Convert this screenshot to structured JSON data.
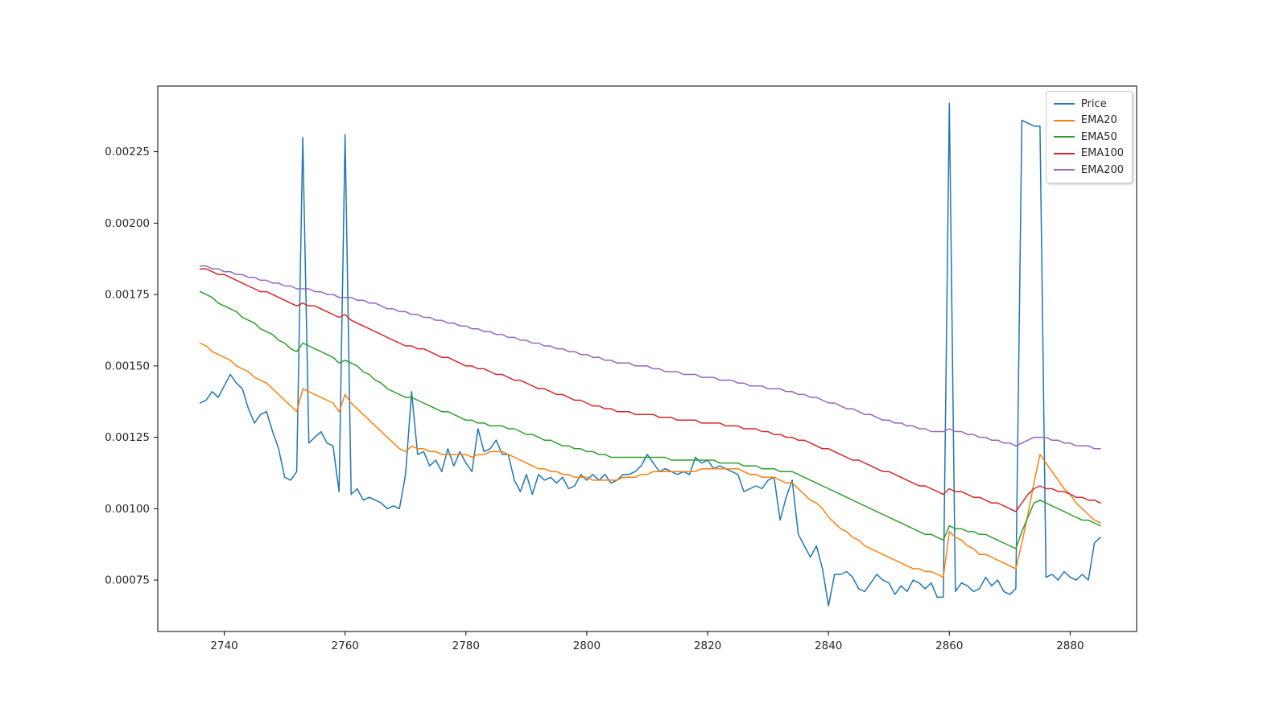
{
  "figure": {
    "background": "#ffffff",
    "axes_edge_color": "#000000",
    "tick_color": "#000000"
  },
  "legend": {
    "position": "upper right",
    "entries": [
      {
        "label": "Price",
        "color": "#1f77b4"
      },
      {
        "label": "EMA20",
        "color": "#ff7f0e"
      },
      {
        "label": "EMA50",
        "color": "#2ca02c"
      },
      {
        "label": "EMA100",
        "color": "#d62728"
      },
      {
        "label": "EMA200",
        "color": "#9467bd"
      }
    ]
  },
  "chart_data": {
    "type": "line",
    "title": "",
    "xlabel": "",
    "ylabel": "",
    "grid": false,
    "legend_position": "upper right",
    "xlim": [
      2729,
      2891
    ],
    "ylim": [
      0.00057,
      0.00248
    ],
    "xticks": [
      2740,
      2760,
      2780,
      2800,
      2820,
      2840,
      2860,
      2880
    ],
    "xtick_labels": [
      "2740",
      "2760",
      "2780",
      "2800",
      "2820",
      "2840",
      "2860",
      "2880"
    ],
    "yticks": [
      0.00075,
      0.001,
      0.00125,
      0.0015,
      0.00175,
      0.002,
      0.00225
    ],
    "ytick_labels": [
      "0.00075",
      "0.00100",
      "0.00125",
      "0.00150",
      "0.00175",
      "0.00200",
      "0.00225"
    ],
    "x": [
      2736,
      2737,
      2738,
      2739,
      2740,
      2741,
      2742,
      2743,
      2744,
      2745,
      2746,
      2747,
      2748,
      2749,
      2750,
      2751,
      2752,
      2753,
      2754,
      2755,
      2756,
      2757,
      2758,
      2759,
      2760,
      2761,
      2762,
      2763,
      2764,
      2765,
      2766,
      2767,
      2768,
      2769,
      2770,
      2771,
      2772,
      2773,
      2774,
      2775,
      2776,
      2777,
      2778,
      2779,
      2780,
      2781,
      2782,
      2783,
      2784,
      2785,
      2786,
      2787,
      2788,
      2789,
      2790,
      2791,
      2792,
      2793,
      2794,
      2795,
      2796,
      2797,
      2798,
      2799,
      2800,
      2801,
      2802,
      2803,
      2804,
      2805,
      2806,
      2807,
      2808,
      2809,
      2810,
      2811,
      2812,
      2813,
      2814,
      2815,
      2816,
      2817,
      2818,
      2819,
      2820,
      2821,
      2822,
      2823,
      2824,
      2825,
      2826,
      2827,
      2828,
      2829,
      2830,
      2831,
      2832,
      2833,
      2834,
      2835,
      2836,
      2837,
      2838,
      2839,
      2840,
      2841,
      2842,
      2843,
      2844,
      2845,
      2846,
      2847,
      2848,
      2849,
      2850,
      2851,
      2852,
      2853,
      2854,
      2855,
      2856,
      2857,
      2858,
      2859,
      2860,
      2861,
      2862,
      2863,
      2864,
      2865,
      2866,
      2867,
      2868,
      2869,
      2870,
      2871,
      2872,
      2873,
      2874,
      2875,
      2876,
      2877,
      2878,
      2879,
      2880,
      2881,
      2882,
      2883,
      2884,
      2885
    ],
    "series": [
      {
        "name": "Price",
        "color": "#1f77b4",
        "values": [
          0.00137,
          0.00138,
          0.00141,
          0.00139,
          0.00143,
          0.00147,
          0.00144,
          0.00142,
          0.00135,
          0.0013,
          0.00133,
          0.00134,
          0.00127,
          0.00121,
          0.00111,
          0.0011,
          0.00113,
          0.0023,
          0.00123,
          0.00125,
          0.00127,
          0.00123,
          0.00122,
          0.00106,
          0.00231,
          0.00105,
          0.00107,
          0.00103,
          0.00104,
          0.00103,
          0.00102,
          0.001,
          0.00101,
          0.001,
          0.00112,
          0.00141,
          0.00119,
          0.0012,
          0.00115,
          0.00117,
          0.00113,
          0.00121,
          0.00115,
          0.0012,
          0.00116,
          0.00113,
          0.00128,
          0.0012,
          0.00121,
          0.00124,
          0.00119,
          0.00119,
          0.0011,
          0.00106,
          0.00112,
          0.00105,
          0.00112,
          0.0011,
          0.00111,
          0.00109,
          0.00111,
          0.00107,
          0.00108,
          0.00112,
          0.0011,
          0.00112,
          0.0011,
          0.00112,
          0.00109,
          0.0011,
          0.00112,
          0.00112,
          0.00113,
          0.00115,
          0.00119,
          0.00116,
          0.00113,
          0.00114,
          0.00113,
          0.00112,
          0.00113,
          0.00112,
          0.00118,
          0.00116,
          0.00117,
          0.00114,
          0.00115,
          0.00114,
          0.00113,
          0.00112,
          0.00106,
          0.00107,
          0.00108,
          0.00107,
          0.0011,
          0.00111,
          0.00096,
          0.00104,
          0.0011,
          0.00091,
          0.00087,
          0.00083,
          0.00087,
          0.00079,
          0.00066,
          0.00077,
          0.00077,
          0.00078,
          0.00076,
          0.00072,
          0.00071,
          0.00074,
          0.00077,
          0.00075,
          0.00074,
          0.0007,
          0.00073,
          0.00071,
          0.00075,
          0.00074,
          0.00072,
          0.00074,
          0.00069,
          0.00069,
          0.00242,
          0.00071,
          0.00074,
          0.00073,
          0.00071,
          0.00072,
          0.00076,
          0.00073,
          0.00075,
          0.00071,
          0.0007,
          0.00072,
          0.00236,
          0.00235,
          0.00234,
          0.00234,
          0.00076,
          0.00077,
          0.00075,
          0.00078,
          0.00076,
          0.00075,
          0.00077,
          0.00075,
          0.00088,
          0.0009
        ]
      },
      {
        "name": "EMA20",
        "color": "#ff7f0e",
        "values": [
          0.00158,
          0.00157,
          0.00155,
          0.00154,
          0.00153,
          0.00152,
          0.0015,
          0.00149,
          0.00148,
          0.00146,
          0.00145,
          0.00144,
          0.00142,
          0.0014,
          0.00138,
          0.00136,
          0.00134,
          0.00142,
          0.00141,
          0.0014,
          0.00139,
          0.00138,
          0.00137,
          0.00134,
          0.0014,
          0.00137,
          0.00135,
          0.00133,
          0.00131,
          0.00129,
          0.00127,
          0.00125,
          0.00123,
          0.00121,
          0.0012,
          0.00122,
          0.00121,
          0.00121,
          0.0012,
          0.0012,
          0.00119,
          0.00119,
          0.00119,
          0.00119,
          0.00119,
          0.00118,
          0.00119,
          0.00119,
          0.0012,
          0.0012,
          0.0012,
          0.00119,
          0.00118,
          0.00117,
          0.00116,
          0.00115,
          0.00114,
          0.00114,
          0.00113,
          0.00113,
          0.00112,
          0.00112,
          0.00111,
          0.00111,
          0.00111,
          0.0011,
          0.0011,
          0.0011,
          0.0011,
          0.0011,
          0.00111,
          0.00111,
          0.00111,
          0.00112,
          0.00112,
          0.00113,
          0.00113,
          0.00113,
          0.00113,
          0.00113,
          0.00113,
          0.00113,
          0.00113,
          0.00114,
          0.00114,
          0.00114,
          0.00114,
          0.00114,
          0.00114,
          0.00114,
          0.00113,
          0.00112,
          0.00112,
          0.00111,
          0.00111,
          0.00111,
          0.0011,
          0.00109,
          0.00109,
          0.00107,
          0.00105,
          0.00103,
          0.00102,
          0.001,
          0.00097,
          0.00095,
          0.00093,
          0.00092,
          0.0009,
          0.00089,
          0.00087,
          0.00086,
          0.00085,
          0.00084,
          0.00083,
          0.00082,
          0.00081,
          0.0008,
          0.00079,
          0.00079,
          0.00078,
          0.00078,
          0.00077,
          0.00076,
          0.00092,
          0.0009,
          0.00089,
          0.00087,
          0.00086,
          0.00084,
          0.00084,
          0.00083,
          0.00082,
          0.00081,
          0.0008,
          0.00079,
          0.00088,
          0.00098,
          0.00109,
          0.00119,
          0.00116,
          0.00113,
          0.0011,
          0.00107,
          0.00105,
          0.00102,
          0.001,
          0.00098,
          0.00096,
          0.00095
        ]
      },
      {
        "name": "EMA50",
        "color": "#2ca02c",
        "values": [
          0.00176,
          0.00175,
          0.00174,
          0.00172,
          0.00171,
          0.0017,
          0.00169,
          0.00167,
          0.00166,
          0.00165,
          0.00163,
          0.00162,
          0.00161,
          0.00159,
          0.00158,
          0.00156,
          0.00155,
          0.00158,
          0.00157,
          0.00156,
          0.00155,
          0.00154,
          0.00153,
          0.00151,
          0.00152,
          0.00151,
          0.0015,
          0.00148,
          0.00147,
          0.00145,
          0.00144,
          0.00142,
          0.00141,
          0.0014,
          0.00139,
          0.00139,
          0.00138,
          0.00137,
          0.00136,
          0.00135,
          0.00134,
          0.00134,
          0.00133,
          0.00132,
          0.00131,
          0.00131,
          0.0013,
          0.0013,
          0.00129,
          0.00129,
          0.00129,
          0.00128,
          0.00128,
          0.00127,
          0.00126,
          0.00126,
          0.00125,
          0.00124,
          0.00124,
          0.00123,
          0.00122,
          0.00122,
          0.00121,
          0.00121,
          0.0012,
          0.0012,
          0.00119,
          0.00119,
          0.00118,
          0.00118,
          0.00118,
          0.00118,
          0.00118,
          0.00118,
          0.00118,
          0.00118,
          0.00118,
          0.00118,
          0.00117,
          0.00117,
          0.00117,
          0.00117,
          0.00117,
          0.00117,
          0.00117,
          0.00117,
          0.00116,
          0.00116,
          0.00116,
          0.00116,
          0.00115,
          0.00115,
          0.00115,
          0.00114,
          0.00114,
          0.00114,
          0.00113,
          0.00113,
          0.00113,
          0.00112,
          0.00111,
          0.0011,
          0.00109,
          0.00108,
          0.00107,
          0.00106,
          0.00105,
          0.00104,
          0.00103,
          0.00102,
          0.00101,
          0.001,
          0.00099,
          0.00098,
          0.00097,
          0.00096,
          0.00095,
          0.00094,
          0.00093,
          0.00092,
          0.00091,
          0.00091,
          0.0009,
          0.00089,
          0.00094,
          0.00093,
          0.00093,
          0.00092,
          0.00092,
          0.00091,
          0.00091,
          0.0009,
          0.00089,
          0.00088,
          0.00087,
          0.00086,
          0.00092,
          0.00097,
          0.00102,
          0.00103,
          0.00102,
          0.00101,
          0.001,
          0.00099,
          0.00098,
          0.00097,
          0.00096,
          0.00096,
          0.00095,
          0.00094
        ]
      },
      {
        "name": "EMA100",
        "color": "#d62728",
        "values": [
          0.00184,
          0.00184,
          0.00183,
          0.00182,
          0.00182,
          0.00181,
          0.0018,
          0.00179,
          0.00178,
          0.00177,
          0.00176,
          0.00176,
          0.00175,
          0.00174,
          0.00173,
          0.00172,
          0.00171,
          0.00172,
          0.00171,
          0.00171,
          0.0017,
          0.00169,
          0.00168,
          0.00167,
          0.00168,
          0.00166,
          0.00165,
          0.00164,
          0.00163,
          0.00162,
          0.00161,
          0.0016,
          0.00159,
          0.00158,
          0.00157,
          0.00157,
          0.00156,
          0.00156,
          0.00155,
          0.00154,
          0.00153,
          0.00153,
          0.00152,
          0.00151,
          0.0015,
          0.0015,
          0.00149,
          0.00149,
          0.00148,
          0.00147,
          0.00147,
          0.00146,
          0.00145,
          0.00145,
          0.00144,
          0.00143,
          0.00142,
          0.00142,
          0.00141,
          0.0014,
          0.0014,
          0.00139,
          0.00138,
          0.00138,
          0.00137,
          0.00136,
          0.00136,
          0.00135,
          0.00135,
          0.00134,
          0.00134,
          0.00134,
          0.00133,
          0.00133,
          0.00133,
          0.00133,
          0.00132,
          0.00132,
          0.00132,
          0.00131,
          0.00131,
          0.00131,
          0.00131,
          0.0013,
          0.0013,
          0.0013,
          0.0013,
          0.00129,
          0.00129,
          0.00129,
          0.00128,
          0.00128,
          0.00128,
          0.00127,
          0.00127,
          0.00126,
          0.00126,
          0.00125,
          0.00125,
          0.00124,
          0.00124,
          0.00123,
          0.00122,
          0.00121,
          0.00121,
          0.0012,
          0.00119,
          0.00118,
          0.00117,
          0.00117,
          0.00116,
          0.00115,
          0.00114,
          0.00113,
          0.00113,
          0.00112,
          0.00111,
          0.0011,
          0.00109,
          0.00108,
          0.00108,
          0.00107,
          0.00106,
          0.00105,
          0.00107,
          0.00106,
          0.00106,
          0.00105,
          0.00104,
          0.00104,
          0.00103,
          0.00102,
          0.00102,
          0.00101,
          0.001,
          0.00099,
          0.00102,
          0.00105,
          0.00107,
          0.00108,
          0.00107,
          0.00107,
          0.00106,
          0.00106,
          0.00105,
          0.00104,
          0.00104,
          0.00103,
          0.00103,
          0.00102
        ]
      },
      {
        "name": "EMA200",
        "color": "#9467bd",
        "values": [
          0.00185,
          0.00185,
          0.00184,
          0.00184,
          0.00183,
          0.00183,
          0.00182,
          0.00182,
          0.00181,
          0.00181,
          0.0018,
          0.0018,
          0.00179,
          0.00179,
          0.00178,
          0.00178,
          0.00177,
          0.00177,
          0.00177,
          0.00176,
          0.00176,
          0.00175,
          0.00175,
          0.00174,
          0.00174,
          0.00174,
          0.00173,
          0.00173,
          0.00172,
          0.00172,
          0.00171,
          0.0017,
          0.0017,
          0.00169,
          0.00169,
          0.00168,
          0.00168,
          0.00167,
          0.00167,
          0.00166,
          0.00166,
          0.00165,
          0.00165,
          0.00164,
          0.00164,
          0.00163,
          0.00163,
          0.00162,
          0.00162,
          0.00161,
          0.00161,
          0.0016,
          0.0016,
          0.00159,
          0.00159,
          0.00158,
          0.00158,
          0.00157,
          0.00157,
          0.00156,
          0.00156,
          0.00155,
          0.00155,
          0.00154,
          0.00154,
          0.00153,
          0.00153,
          0.00152,
          0.00152,
          0.00151,
          0.00151,
          0.00151,
          0.0015,
          0.0015,
          0.0015,
          0.00149,
          0.00149,
          0.00148,
          0.00148,
          0.00148,
          0.00147,
          0.00147,
          0.00147,
          0.00146,
          0.00146,
          0.00146,
          0.00145,
          0.00145,
          0.00145,
          0.00144,
          0.00144,
          0.00143,
          0.00143,
          0.00143,
          0.00142,
          0.00142,
          0.00142,
          0.00141,
          0.00141,
          0.0014,
          0.0014,
          0.00139,
          0.00139,
          0.00138,
          0.00137,
          0.00137,
          0.00136,
          0.00135,
          0.00135,
          0.00134,
          0.00133,
          0.00133,
          0.00132,
          0.00131,
          0.00131,
          0.0013,
          0.0013,
          0.00129,
          0.00129,
          0.00128,
          0.00128,
          0.00127,
          0.00127,
          0.00127,
          0.00128,
          0.00127,
          0.00127,
          0.00126,
          0.00126,
          0.00125,
          0.00125,
          0.00124,
          0.00124,
          0.00123,
          0.00123,
          0.00122,
          0.00123,
          0.00124,
          0.00125,
          0.00125,
          0.00125,
          0.00124,
          0.00124,
          0.00123,
          0.00123,
          0.00122,
          0.00122,
          0.00122,
          0.00121,
          0.00121
        ]
      }
    ]
  }
}
